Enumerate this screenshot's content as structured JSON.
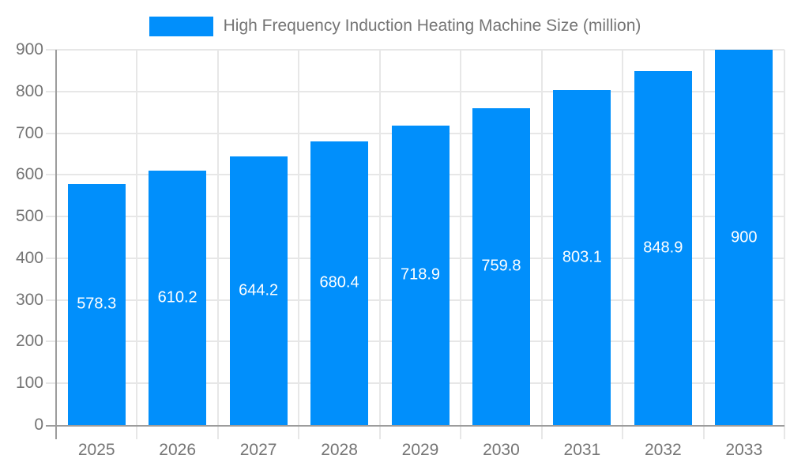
{
  "legend": {
    "label": "High Frequency Induction Heating Machine Size (million)"
  },
  "colors": {
    "bar": "#018FFB",
    "bar_label": "#FFFFFF",
    "axis_line": "#9C9C9C",
    "grid_line": "#E7E7E7",
    "tick_text": "#757575",
    "legend_text": "#757575",
    "background": "#FFFFFF"
  },
  "chart_data": {
    "type": "bar",
    "title": "High Frequency Induction Heating Machine Size (million)",
    "categories": [
      "2025",
      "2026",
      "2027",
      "2028",
      "2029",
      "2030",
      "2031",
      "2032",
      "2033"
    ],
    "values": [
      578.3,
      610.2,
      644.2,
      680.4,
      718.9,
      759.8,
      803.1,
      848.9,
      900
    ],
    "value_labels": [
      "578.3",
      "610.2",
      "644.2",
      "680.4",
      "718.9",
      "759.8",
      "803.1",
      "848.9",
      "900"
    ],
    "xlabel": "",
    "ylabel": "",
    "ylim": [
      0,
      900
    ],
    "ytick_step": 100,
    "ytick_labels": [
      "0",
      "100",
      "200",
      "300",
      "400",
      "500",
      "600",
      "700",
      "800",
      "900"
    ],
    "grid": true,
    "legend_position": "top",
    "bar_label_position": "inside-center"
  }
}
